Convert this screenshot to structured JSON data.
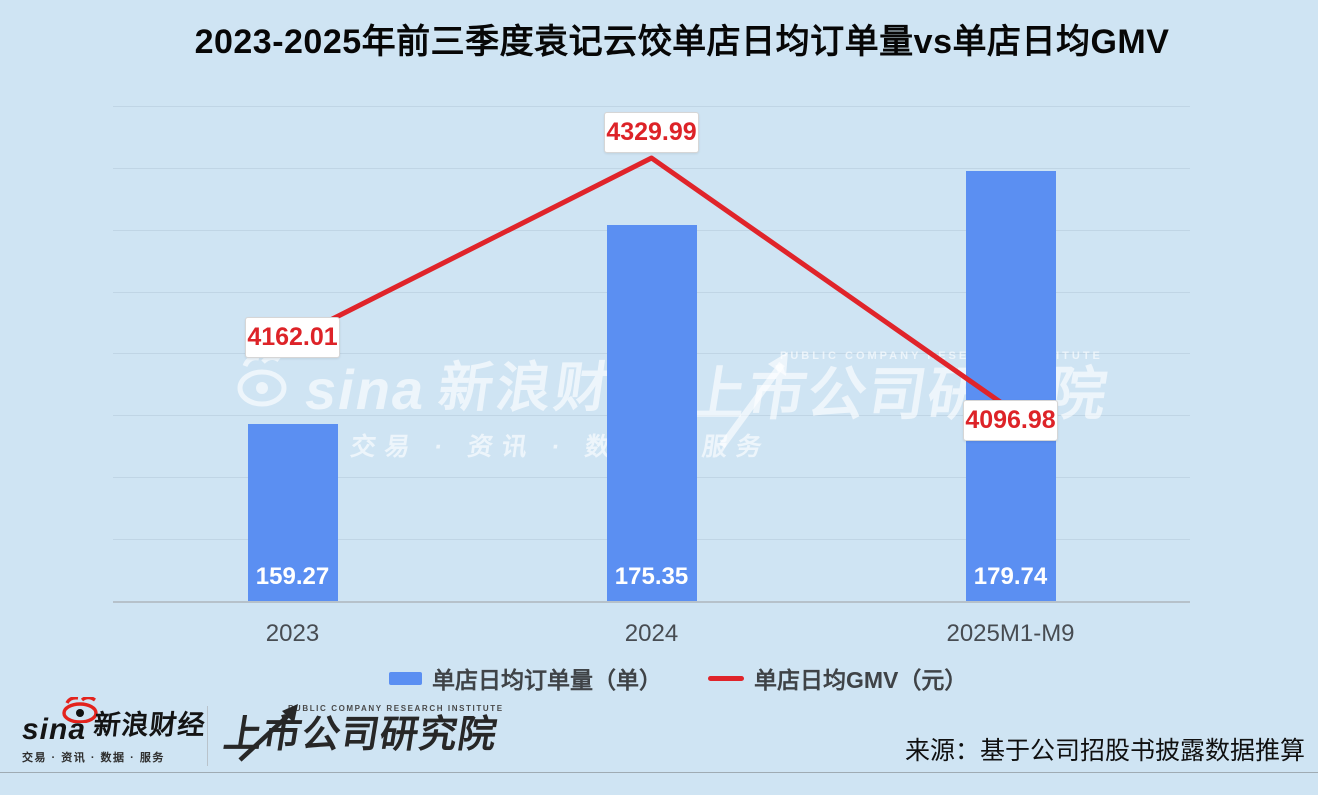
{
  "title": "2023-2025年前三季度袁记云饺单店日均订单量vs单店日均GMV",
  "chart_data": {
    "type": "bar+line",
    "categories": [
      "2023",
      "2024",
      "2025M1-M9"
    ],
    "series": [
      {
        "name": "单店日均订单量（单）",
        "type": "bar",
        "values": [
          159.27,
          175.35,
          179.74
        ],
        "color": "#5b8ff2"
      },
      {
        "name": "单店日均GMV（元）",
        "type": "line",
        "values": [
          4162.01,
          4329.99,
          4096.98
        ],
        "color": "#e0242a"
      }
    ],
    "bar_axis": {
      "min": 145,
      "max": 185,
      "step": 5,
      "labels_visible": false
    },
    "grid": true,
    "legend_position": "bottom",
    "value_label_color_bar": "#ffffff",
    "value_label_color_line": "#dd2328",
    "background": "#cfe4f3"
  },
  "legend": {
    "items": [
      {
        "label": "单店日均订单量（单）",
        "swatch": "bar-swatch",
        "color": "#5b8ff2"
      },
      {
        "label": "单店日均GMV（元）",
        "swatch": "line-swatch",
        "color": "#e0242a"
      }
    ]
  },
  "watermarks": {
    "sina": {
      "logo": "sina-eye-icon",
      "wordmark": "sina",
      "cn": "新浪财经",
      "tagline": "交易 · 资讯 · 数据 · 服务"
    },
    "institute": {
      "icon": "arrow-up-right-icon",
      "en": "PUBLIC COMPANY RESEARCH INSTITUTE",
      "cn": "上市公司研究院"
    }
  },
  "footer": {
    "sina_logo": {
      "icon": "sina-eye-icon",
      "wordmark": "sina",
      "cn": "新浪财经",
      "tagline": "交易 · 资讯 · 数据 · 服务"
    },
    "institute_logo": {
      "icon": "arrow-up-right-icon",
      "en": "PUBLIC COMPANY RESEARCH INSTITUTE",
      "cn": "上市公司研究院"
    },
    "source": "来源：基于公司招股书披露数据推算"
  }
}
